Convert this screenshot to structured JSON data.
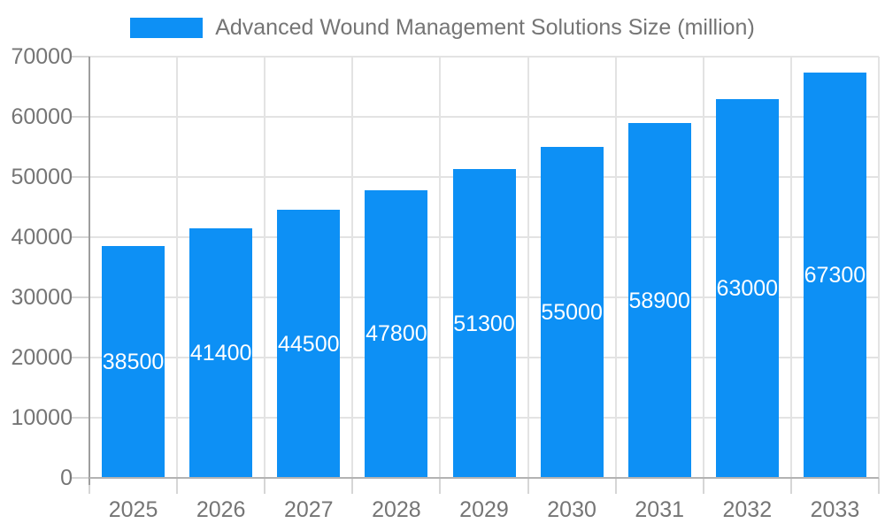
{
  "chart_data": {
    "type": "bar",
    "title": "Advanced Wound Management Solutions Size (million)",
    "categories": [
      "2025",
      "2026",
      "2027",
      "2028",
      "2029",
      "2030",
      "2031",
      "2032",
      "2033"
    ],
    "values": [
      38500,
      41400,
      44500,
      47800,
      51300,
      55000,
      58900,
      63000,
      67300
    ],
    "xlabel": "",
    "ylabel": "",
    "ylim": [
      0,
      70000
    ],
    "ytick_step": 10000,
    "ytick_labels": [
      "0",
      "10000",
      "20000",
      "30000",
      "40000",
      "50000",
      "60000",
      "70000"
    ],
    "legend_position": "top-center",
    "grid": true,
    "bar_labels_position": "inside-center",
    "colors": {
      "bar": "#0d90f5",
      "bar_label_text": "#ffffff",
      "axis_text": "#757575",
      "legend_text": "#757575",
      "gridline": "#e3e3e3",
      "axis_line": "#9e9e9e",
      "baseline": "#b3b3b3",
      "tick": "#d6d6d6",
      "background": "#ffffff"
    }
  }
}
